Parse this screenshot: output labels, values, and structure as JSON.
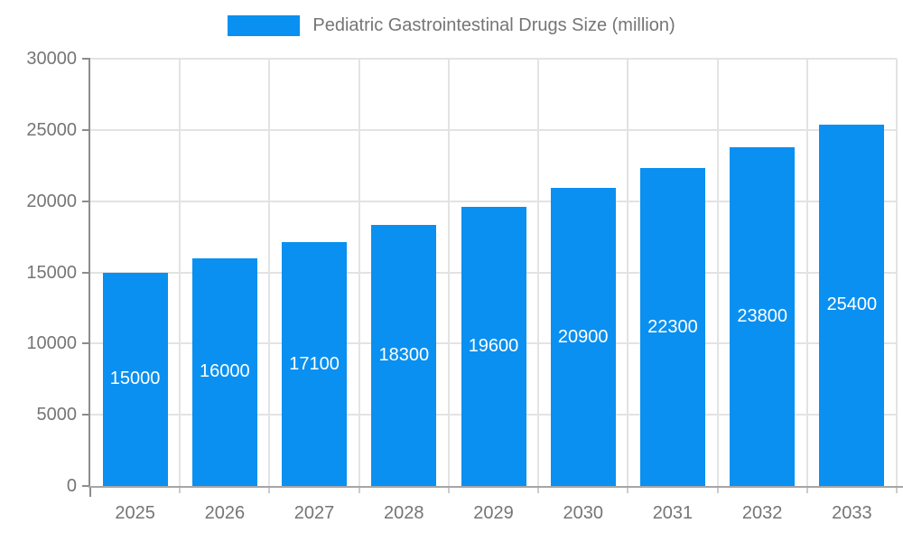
{
  "chart_data": {
    "type": "bar",
    "title": "Pediatric Gastrointestinal Drugs Size (million)",
    "categories": [
      "2025",
      "2026",
      "2027",
      "2028",
      "2029",
      "2030",
      "2031",
      "2032",
      "2033"
    ],
    "values": [
      15000,
      16000,
      17100,
      18300,
      19600,
      20900,
      22300,
      23800,
      25400
    ],
    "series": [
      {
        "name": "Pediatric Gastrointestinal Drugs Size (million)",
        "values": [
          15000,
          16000,
          17100,
          18300,
          19600,
          20900,
          22300,
          23800,
          25400
        ]
      }
    ],
    "xlabel": "",
    "ylabel": "",
    "ylim": [
      0,
      30000
    ],
    "yticks": [
      0,
      5000,
      10000,
      15000,
      20000,
      25000,
      30000
    ],
    "grid": true,
    "legend_position": "top-center",
    "value_labels": {
      "shown": true,
      "position": "inside-middle",
      "color": "#ffffff"
    },
    "colors": {
      "bar": "#0a90f0",
      "axis_text": "#757575",
      "grid": "#e3e3e3",
      "axis_line": "#8c8c8c",
      "x_tick": "#cccccc",
      "background": "#ffffff"
    }
  }
}
